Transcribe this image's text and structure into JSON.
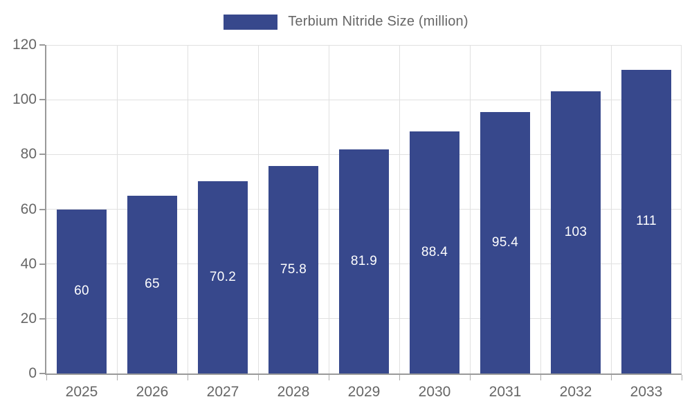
{
  "legend": {
    "label": "Terbium Nitride Size (million)"
  },
  "colors": {
    "bar": "#37488c",
    "grid": "#e0e0e0",
    "axis": "#999999",
    "tick_text": "#666666",
    "bar_label_text": "#ffffff",
    "legend_text": "#666666"
  },
  "chart_data": {
    "type": "bar",
    "title": "Terbium Nitride Size (million)",
    "categories": [
      "2025",
      "2026",
      "2027",
      "2028",
      "2029",
      "2030",
      "2031",
      "2032",
      "2033"
    ],
    "values": [
      60,
      65,
      70.2,
      75.8,
      81.9,
      88.4,
      95.4,
      103,
      111
    ],
    "value_labels": [
      "60",
      "65",
      "70.2",
      "75.8",
      "81.9",
      "88.4",
      "95.4",
      "103",
      "111"
    ],
    "xlabel": "",
    "ylabel": "",
    "ylim": [
      0,
      120
    ],
    "yticks": [
      0,
      20,
      40,
      60,
      80,
      100,
      120
    ],
    "grid": true,
    "legend_position": "top",
    "bar_label_position": "inside-center"
  }
}
